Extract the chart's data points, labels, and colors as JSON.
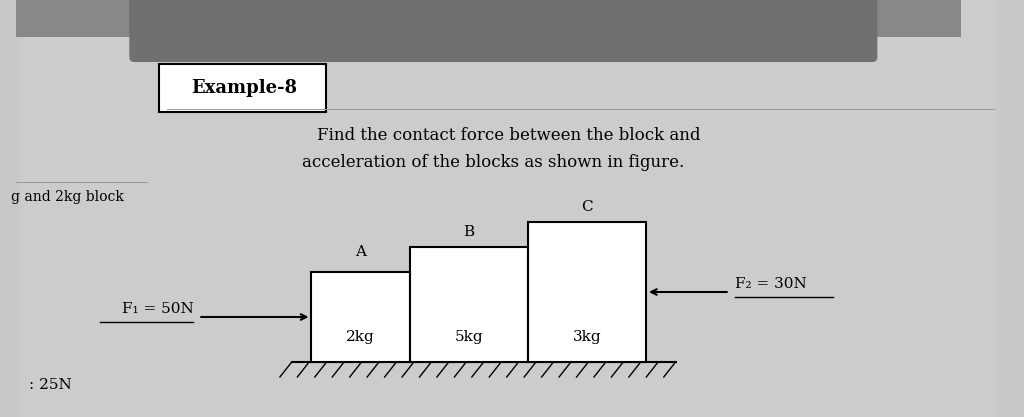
{
  "bg_color": "#c8c8c8",
  "page_bg": "#d0d0d0",
  "title": "Example-8",
  "subtitle_line1": "Find the contact force between the block and",
  "subtitle_line2": "acceleration of the blocks as shown in figure.",
  "left_text_line1": "g and 2kg block",
  "bottom_left_text": ": 25N",
  "block_A_label": "2kg",
  "block_B_label": "5kg",
  "block_C_label": "3kg",
  "label_A": "A",
  "label_B": "B",
  "label_C": "C",
  "F1_label": "F₁ = 50N",
  "F2_label": "F₂ = 30N",
  "block_fill": "#ffffff",
  "block_edge": "#000000",
  "ground_color": "#000000",
  "text_color": "#000000",
  "title_box_fill": "#ffffff",
  "title_box_edge": "#000000"
}
